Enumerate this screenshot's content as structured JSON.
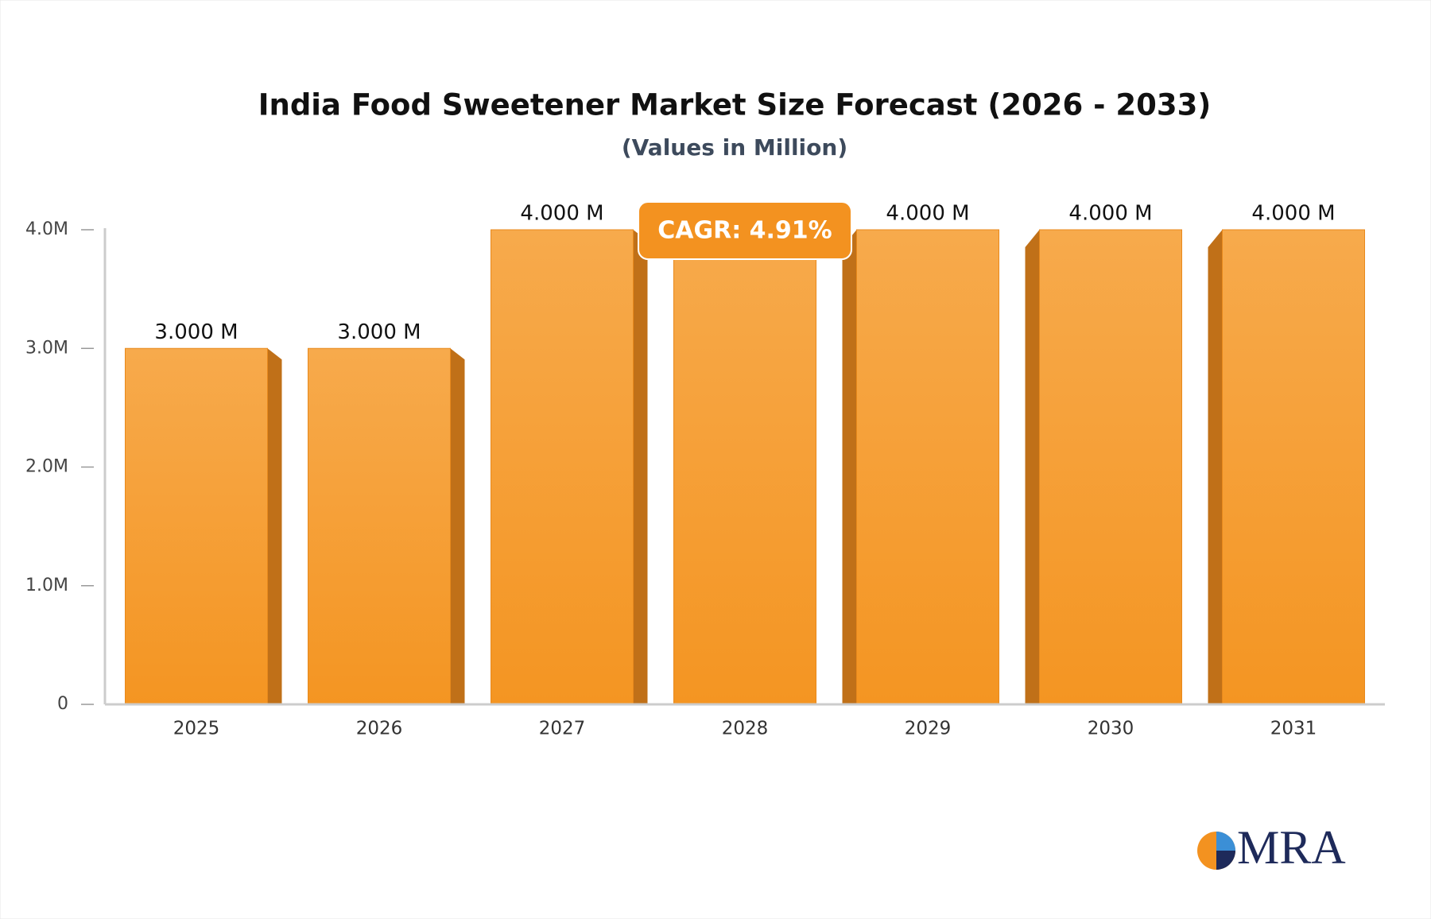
{
  "chart_data": {
    "type": "bar",
    "title": "India Food Sweetener Market Size Forecast (2026 - 2033)",
    "subtitle": "(Values in Million)",
    "categories": [
      "2025",
      "2026",
      "2027",
      "2028",
      "2029",
      "2030",
      "2031"
    ],
    "values": [
      3,
      3,
      4,
      4,
      4,
      4,
      4
    ],
    "value_labels": [
      "3.000 M",
      "3.000 M",
      "4.000 M",
      null,
      "4.000 M",
      "4.000 M",
      "4.000 M"
    ],
    "color": "#f5a03a",
    "ylim": [
      0,
      4
    ],
    "yticks": [
      0,
      {
        "value": 1,
        "label": "1.0M"
      },
      {
        "value": 2,
        "label": "2.0M"
      },
      {
        "value": 3,
        "label": "3.0M"
      },
      {
        "value": 4,
        "label": "4.0M"
      }
    ],
    "annotation": "CAGR: 4.91%",
    "logo": "MRA"
  }
}
